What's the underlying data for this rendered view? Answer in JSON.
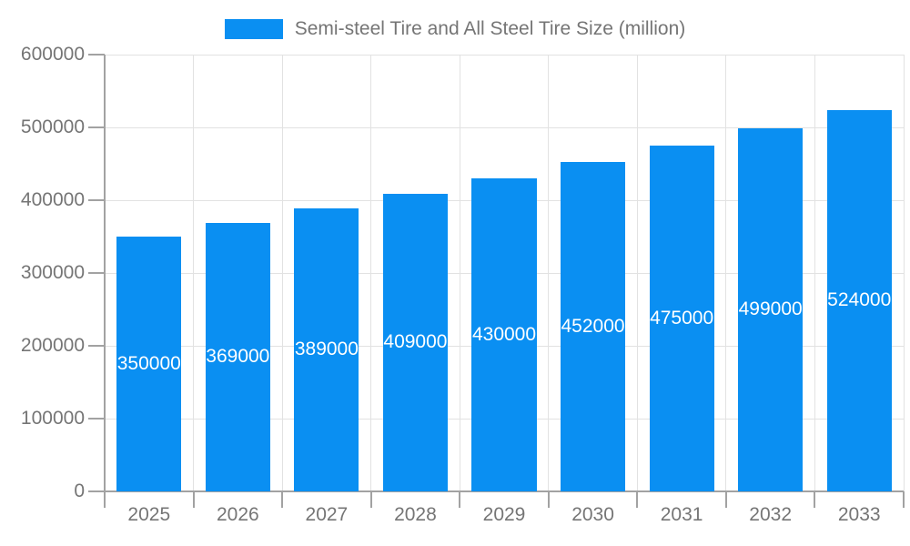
{
  "chart_data": {
    "type": "bar",
    "title": "Semi-steel Tire and All Steel Tire Size (million)",
    "categories": [
      "2025",
      "2026",
      "2027",
      "2028",
      "2029",
      "2030",
      "2031",
      "2032",
      "2033"
    ],
    "values": [
      350000,
      369000,
      389000,
      409000,
      430000,
      452000,
      475000,
      499000,
      524000
    ],
    "xlabel": "",
    "ylabel": "",
    "ylim": [
      0,
      600000
    ],
    "ytick_step": 100000,
    "yticks": [
      "0",
      "100000",
      "200000",
      "300000",
      "400000",
      "500000",
      "600000"
    ],
    "grid": true,
    "legend_position": "top",
    "bar_label_position": "middle",
    "colors": {
      "bar": "#0a8ff2",
      "bar_label": "#ffffff",
      "axis_text": "#757575",
      "axis_line": "#a2a2a2",
      "gridline": "#e2e2e2",
      "background": "#ffffff"
    }
  }
}
